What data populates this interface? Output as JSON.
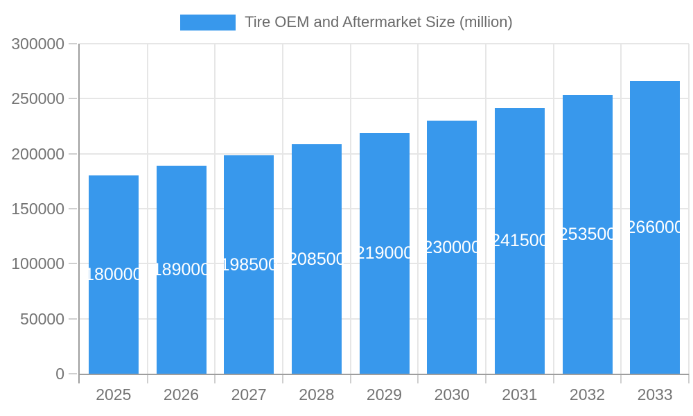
{
  "chart_data": {
    "type": "bar",
    "title": "Tire OEM and Aftermarket Size (million)",
    "legend": {
      "position": "top",
      "label": "Tire OEM and Aftermarket Size (million)"
    },
    "categories": [
      "2025",
      "2026",
      "2027",
      "2028",
      "2029",
      "2030",
      "2031",
      "2032",
      "2033"
    ],
    "values": [
      180000,
      189000,
      198500,
      208500,
      219000,
      230000,
      241500,
      253500,
      266000
    ],
    "xlabel": "",
    "ylabel": "",
    "ylim": [
      0,
      300000
    ],
    "yticks": [
      0,
      50000,
      100000,
      150000,
      200000,
      250000,
      300000
    ],
    "grid": true,
    "bar_color": "#3898EC",
    "data_label_color": "#FFFFFF",
    "axis_text_color": "#737373",
    "legend_text_color": "#6B6B6B",
    "grid_color": "#E6E6E6",
    "axis_line_color": "#9E9E9E",
    "tick_mark_color": "#CFCFCF"
  }
}
